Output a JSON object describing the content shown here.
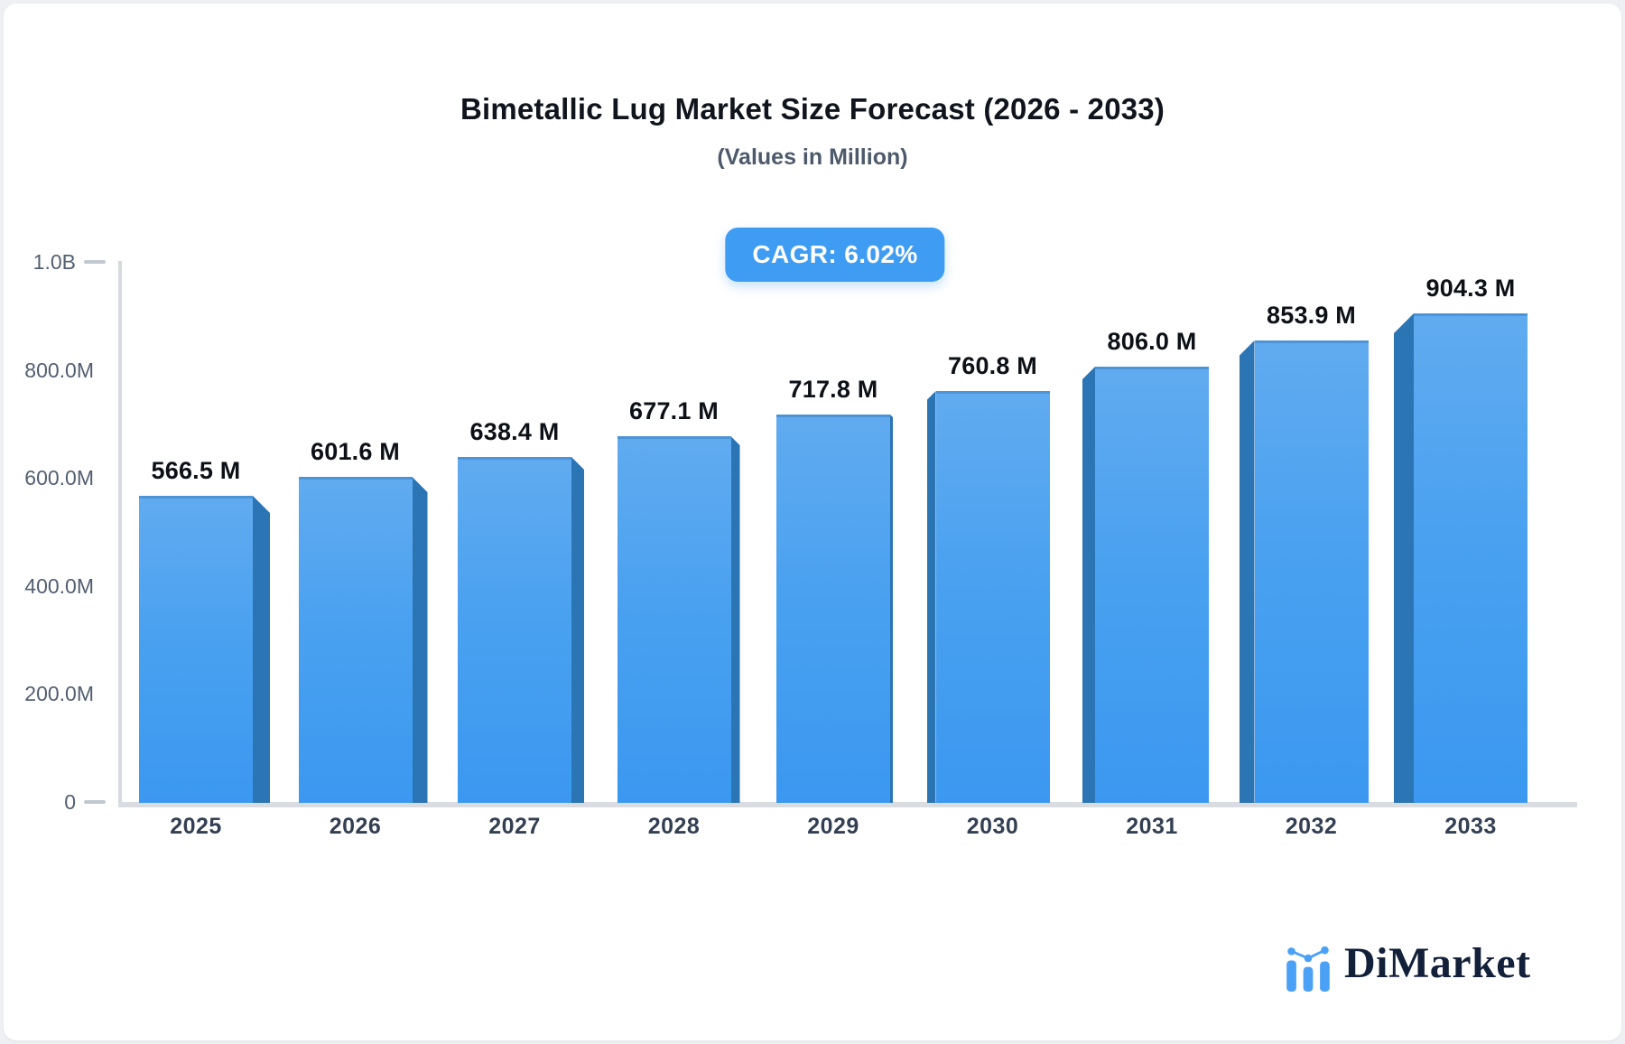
{
  "title": "Bimetallic Lug Market Size Forecast (2026 - 2033)",
  "subtitle": "(Values in Million)",
  "badge": {
    "label": "CAGR: 6.02%"
  },
  "logo": {
    "text": "DiMarket",
    "icon": "bar-chart-logo-icon"
  },
  "colors": {
    "bar_face_top": "#61abf0",
    "bar_face_bottom": "#3b98f0",
    "bar_side": "#2c75b5",
    "badge_background": "#3e9cf3",
    "badge_text": "#ffffff",
    "axis_line": "#d6dade",
    "tick_text": "#525f72",
    "x_label_text": "#333f52",
    "value_label_text": "#0d1117",
    "logo_blue": "#4ba1f5",
    "logo_navy": "#13203a"
  },
  "chart_data": {
    "type": "bar",
    "style": "3d-column",
    "title": "Bimetallic Lug Market Size Forecast (2026 - 2033)",
    "subtitle": "(Values in Million)",
    "xlabel": "",
    "ylabel": "",
    "categories": [
      "2025",
      "2026",
      "2027",
      "2028",
      "2029",
      "2030",
      "2031",
      "2032",
      "2033"
    ],
    "values": [
      566.5,
      601.6,
      638.4,
      677.1,
      717.8,
      760.8,
      806.0,
      853.9,
      904.3
    ],
    "value_labels": [
      "566.5 M",
      "601.6 M",
      "638.4 M",
      "677.1 M",
      "717.8 M",
      "760.8 M",
      "806.0 M",
      "853.9 M",
      "904.3 M"
    ],
    "unit": "Million USD",
    "ylim": [
      0,
      1000
    ],
    "grid": false,
    "legend": "none",
    "y_ticks": [
      {
        "label": "1.0B",
        "value": 1000,
        "dash": true
      },
      {
        "label": "800.0M",
        "value": 800,
        "dash": false
      },
      {
        "label": "600.0M",
        "value": 600,
        "dash": false
      },
      {
        "label": "400.0M",
        "value": 400,
        "dash": false
      },
      {
        "label": "200.0M",
        "value": 200,
        "dash": false
      },
      {
        "label": "0",
        "value": 0,
        "dash": true
      }
    ]
  }
}
